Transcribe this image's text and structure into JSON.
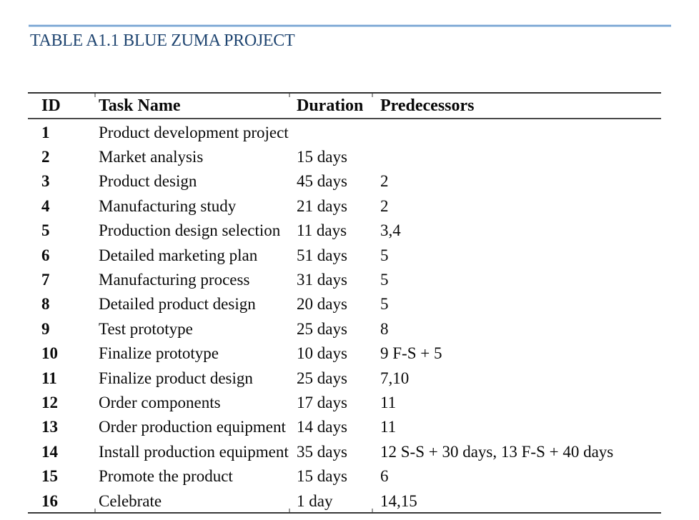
{
  "title": "TABLE A1.1 BLUE ZUMA PROJECT",
  "colors": {
    "accent_line": "#7ba6d4",
    "title_text": "#1e4470",
    "rule": "#383838"
  },
  "table": {
    "columns": [
      "ID",
      "Task Name",
      "Duration",
      "Predecessors"
    ],
    "rows": [
      {
        "id": "1",
        "task": "Product development project",
        "duration": "",
        "predecessors": ""
      },
      {
        "id": "2",
        "task": "Market analysis",
        "duration": "15 days",
        "predecessors": ""
      },
      {
        "id": "3",
        "task": "Product design",
        "duration": "45 days",
        "predecessors": "2"
      },
      {
        "id": "4",
        "task": "Manufacturing study",
        "duration": "21 days",
        "predecessors": "2"
      },
      {
        "id": "5",
        "task": "Production design selection",
        "duration": "11 days",
        "predecessors": "3,4"
      },
      {
        "id": "6",
        "task": "Detailed marketing plan",
        "duration": "51 days",
        "predecessors": "5"
      },
      {
        "id": "7",
        "task": "Manufacturing process",
        "duration": "31 days",
        "predecessors": "5"
      },
      {
        "id": "8",
        "task": "Detailed product design",
        "duration": "20 days",
        "predecessors": "5"
      },
      {
        "id": "9",
        "task": "Test prototype",
        "duration": "25 days",
        "predecessors": "8"
      },
      {
        "id": "10",
        "task": "Finalize prototype",
        "duration": "10 days",
        "predecessors": "9 F-S + 5"
      },
      {
        "id": "11",
        "task": "Finalize product design",
        "duration": "25 days",
        "predecessors": "7,10"
      },
      {
        "id": "12",
        "task": "Order components",
        "duration": "17 days",
        "predecessors": "11"
      },
      {
        "id": "13",
        "task": "Order production equipment",
        "duration": "14 days",
        "predecessors": "11"
      },
      {
        "id": "14",
        "task": "Install production equipment",
        "duration": "35 days",
        "predecessors": "12 S-S + 30 days, 13 F-S + 40 days"
      },
      {
        "id": "15",
        "task": "Promote the product",
        "duration": "15 days",
        "predecessors": "6"
      },
      {
        "id": "16",
        "task": "Celebrate",
        "duration": "1 day",
        "predecessors": "14,15"
      }
    ]
  }
}
